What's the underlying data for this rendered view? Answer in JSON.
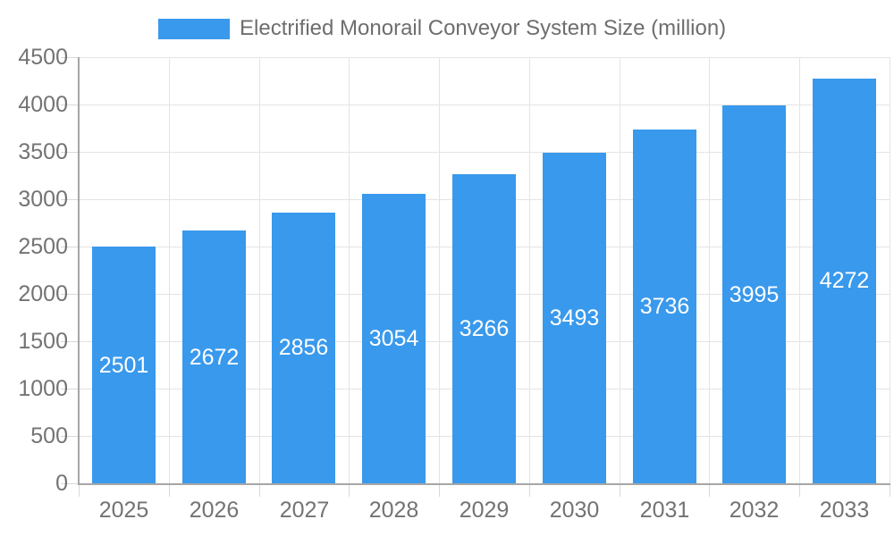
{
  "chart_data": {
    "type": "bar",
    "title": "Electrified Monorail Conveyor System Size (million)",
    "categories": [
      "2025",
      "2026",
      "2027",
      "2028",
      "2029",
      "2030",
      "2031",
      "2032",
      "2033"
    ],
    "values": [
      2501,
      2672,
      2856,
      3054,
      3266,
      3493,
      3736,
      3995,
      4272
    ],
    "series": [
      {
        "name": "Electrified Monorail Conveyor System Size (million)",
        "values": [
          2501,
          2672,
          2856,
          3054,
          3266,
          3493,
          3736,
          3995,
          4272
        ]
      }
    ],
    "xlabel": "",
    "ylabel": "",
    "ylim": [
      0,
      4500
    ],
    "ytick_step": 500,
    "grid": true,
    "legend_position": "top",
    "bar_labels_position": "center-inside",
    "colors": {
      "bar": "#3999EC",
      "bar_label": "#FFFFFF",
      "axis_text": "#737373",
      "legend_text": "#6E6E6E",
      "grid_line": "#E4E4E4",
      "tick_line": "#D8D8D8",
      "axis_line": "#A6A6A6",
      "background": "#FFFFFF"
    }
  }
}
